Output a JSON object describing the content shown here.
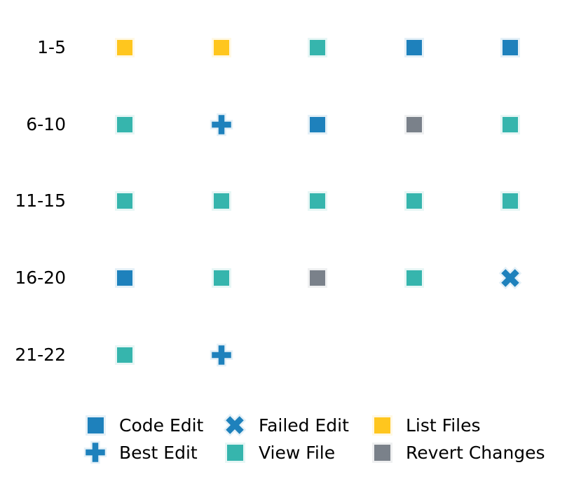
{
  "chart_data": {
    "type": "scatter",
    "title": "",
    "xlabel": "",
    "ylabel": "",
    "description": "Timeline of agent actions grouped in step ranges; each row shows up to 5 sequential action markers",
    "y_categories": [
      "1-5",
      "6-10",
      "11-15",
      "16-20",
      "21-22"
    ],
    "grid": false,
    "background": "#ffffff",
    "text_color": "#000000",
    "legend_position": "lower center",
    "rows": [
      {
        "label": "1-5",
        "actions": [
          "list_files",
          "list_files",
          "view_file",
          "code_edit",
          "code_edit"
        ]
      },
      {
        "label": "6-10",
        "actions": [
          "view_file",
          "best_edit",
          "code_edit",
          "revert_changes",
          "view_file"
        ]
      },
      {
        "label": "11-15",
        "actions": [
          "view_file",
          "view_file",
          "view_file",
          "view_file",
          "view_file"
        ]
      },
      {
        "label": "16-20",
        "actions": [
          "code_edit",
          "view_file",
          "revert_changes",
          "view_file",
          "failed_edit"
        ]
      },
      {
        "label": "21-22",
        "actions": [
          "view_file",
          "best_edit"
        ]
      }
    ],
    "markers": {
      "code_edit": {
        "label": "Code Edit",
        "shape": "square",
        "fill": "#1E81BC",
        "edge": "#E4F0F7"
      },
      "best_edit": {
        "label": "Best Edit",
        "shape": "plus",
        "fill": "#1E81BC",
        "edge": "#E4F0F7"
      },
      "failed_edit": {
        "label": "Failed Edit",
        "shape": "x",
        "fill": "#1E81BC",
        "edge": "#E4F0F7"
      },
      "view_file": {
        "label": "View File",
        "shape": "square",
        "fill": "#36B5AD",
        "edge": "#E7F6F5"
      },
      "list_files": {
        "label": "List Files",
        "shape": "square",
        "fill": "#FFC61E",
        "edge": "#FFF8E4"
      },
      "revert_changes": {
        "label": "Revert Changes",
        "shape": "square",
        "fill": "#7A818A",
        "edge": "#EFF0F1"
      }
    },
    "legend_columns": [
      [
        "code_edit",
        "best_edit"
      ],
      [
        "failed_edit",
        "view_file"
      ],
      [
        "list_files",
        "revert_changes"
      ]
    ]
  }
}
